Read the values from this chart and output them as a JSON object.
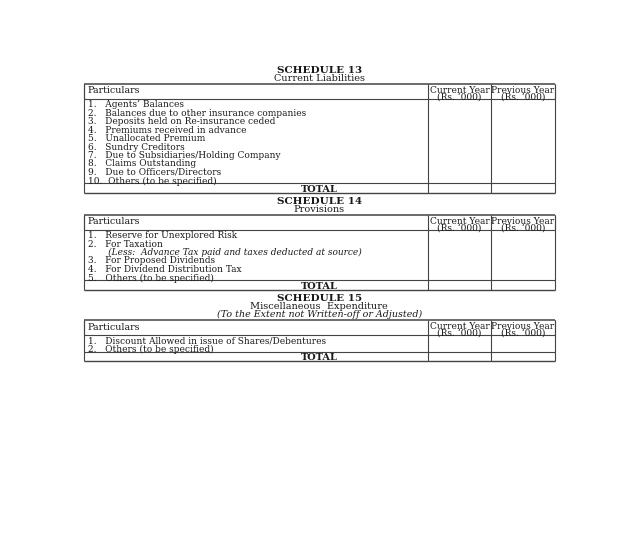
{
  "bg_color": "#ffffff",
  "text_color": "#1a1a1a",
  "line_color": "#444444",
  "schedule13": {
    "title1": "SCHEDULE 13",
    "title2": "Current Liabilities",
    "col_header": "Particulars",
    "items": [
      "1.   Agents’ Balances",
      "2.   Balances due to other insurance companies",
      "3.   Deposits held on Re-insurance ceded",
      "4.   Premiums received in advance",
      "5.   Unallocated Premium",
      "6.   Sundry Creditors",
      "7.   Due to Subsidiaries/Holding Company",
      "8.   Claims Outstanding",
      "9.   Due to Officers/Directors",
      "10.  Others (to be specified)"
    ],
    "total": "TOTAL"
  },
  "schedule14": {
    "title1": "SCHEDULE 14",
    "title2": "Provisions",
    "col_header": "Particulars",
    "items": [
      [
        "normal",
        "1.   Reserve for Unexplored Risk"
      ],
      [
        "normal",
        "2.   For Taxation"
      ],
      [
        "italic",
        "       (Less:  Advance Tax paid and taxes deducted at source)"
      ],
      [
        "normal",
        "3.   For Proposed Dividends"
      ],
      [
        "normal",
        "4.   For Dividend Distribution Tax"
      ],
      [
        "normal",
        "5.   Others (to be specified)"
      ]
    ],
    "total": "TOTAL"
  },
  "schedule15": {
    "title1": "SCHEDULE 15",
    "title2": "Miscellaneous  Expenditure",
    "title3": "(To the Extent not Written-off or Adjusted)",
    "col_header": "Particulars",
    "items": [
      "1.   Discount Allowed in issue of Shares/Debentures",
      "2.   Others (to be specified)"
    ],
    "total": "TOTAL"
  },
  "col_cy_label1": "Current Year",
  "col_cy_label2": "(Rs. ‘000)",
  "col_py_label1": "Previous Year",
  "col_py_label2": "(Rs. ‘000)"
}
